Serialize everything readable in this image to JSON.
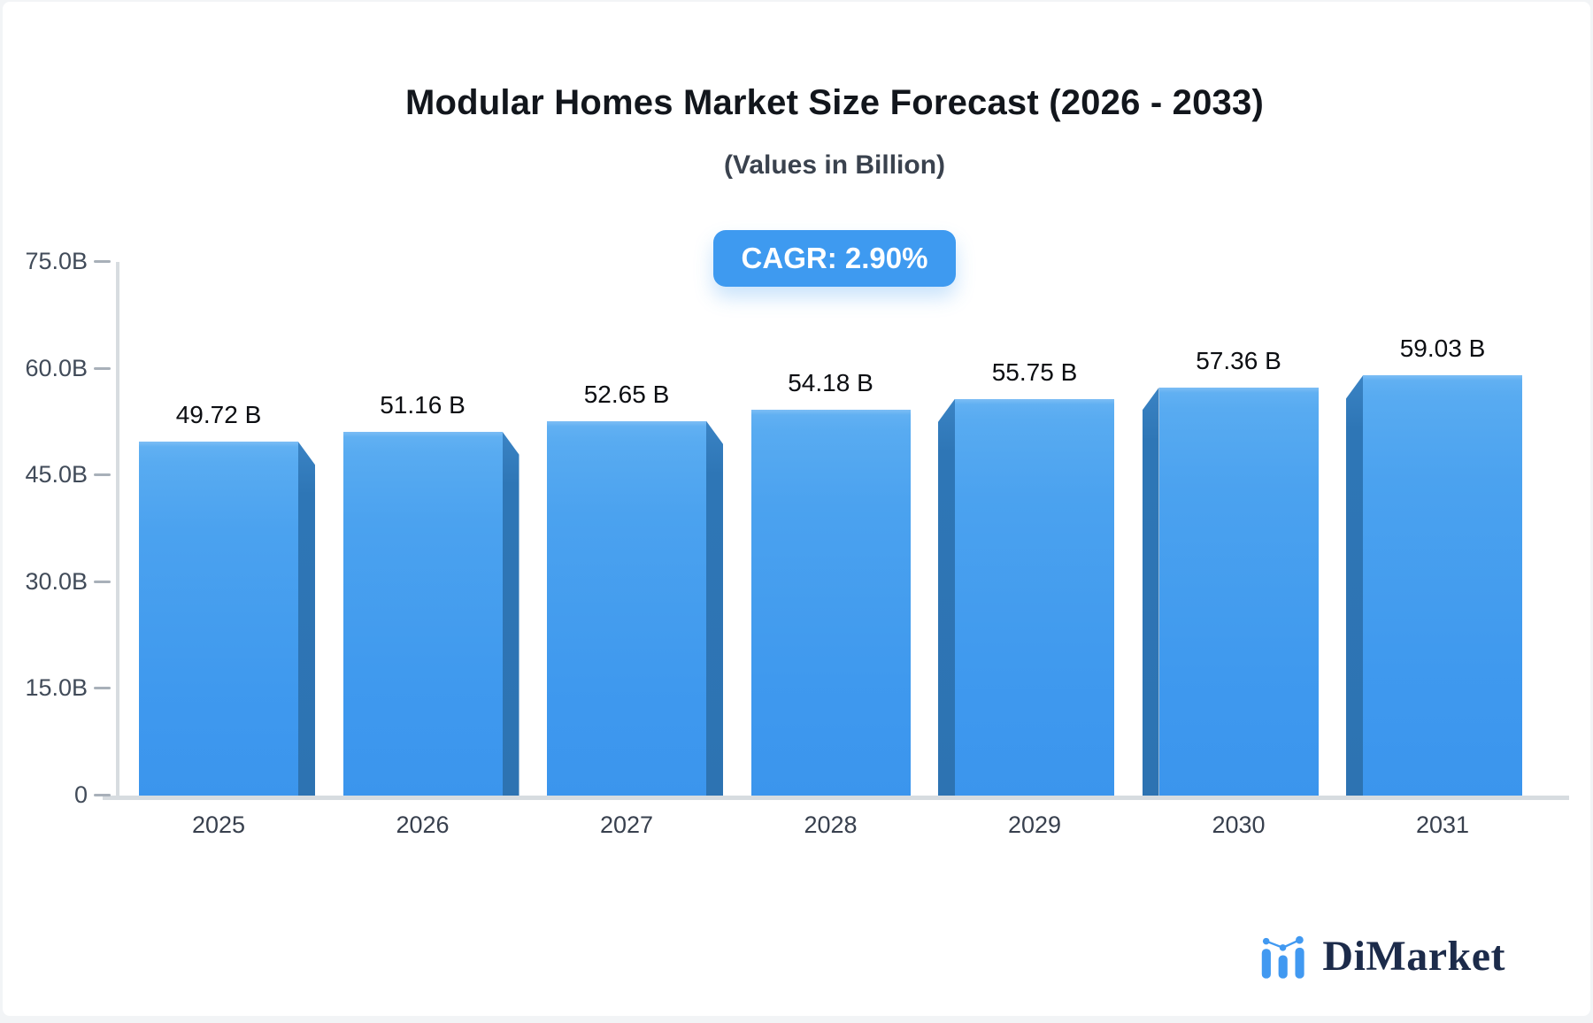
{
  "title": "Modular Homes Market Size Forecast (2026 - 2033)",
  "subtitle": "(Values in Billion)",
  "badge": {
    "label": "CAGR: 2.90%",
    "bg": "#3e9af0",
    "text_color": "#ffffff"
  },
  "chart_data": {
    "type": "bar",
    "categories": [
      "2025",
      "2026",
      "2027",
      "2028",
      "2029",
      "2030",
      "2031"
    ],
    "values": [
      49.72,
      51.16,
      52.65,
      54.18,
      55.75,
      57.36,
      59.03
    ],
    "value_labels": [
      "49.72 B",
      "51.16 B",
      "52.65 B",
      "54.18 B",
      "55.75 B",
      "57.36 B",
      "59.03 B"
    ],
    "title": "Modular Homes Market Size Forecast (2026 - 2033)",
    "subtitle": "(Values in Billion)",
    "xlabel": "",
    "ylabel": "",
    "ylim": [
      0,
      75
    ],
    "yticks": [
      {
        "value": 75,
        "label": "75.0B"
      },
      {
        "value": 60,
        "label": "60.0B"
      },
      {
        "value": 45,
        "label": "45.0B"
      },
      {
        "value": 30,
        "label": "30.0B"
      },
      {
        "value": 15,
        "label": "15.0B"
      },
      {
        "value": 0,
        "label": "0"
      }
    ],
    "grid": false,
    "legend": "none",
    "colors": {
      "bar_face": "#3f99ee",
      "bar_face_highlight": "#61b0f2",
      "bar_side_shade": "#2e76b6",
      "axis_line": "#d7dce0",
      "tick_dash": "#a8b0b9"
    }
  },
  "footer": {
    "logo_text": "DiMarket",
    "logo_icon": "bar-chart-logo-icon",
    "logo_icon_color": "#4199f1",
    "logo_text_color": "#1c2b4a"
  }
}
